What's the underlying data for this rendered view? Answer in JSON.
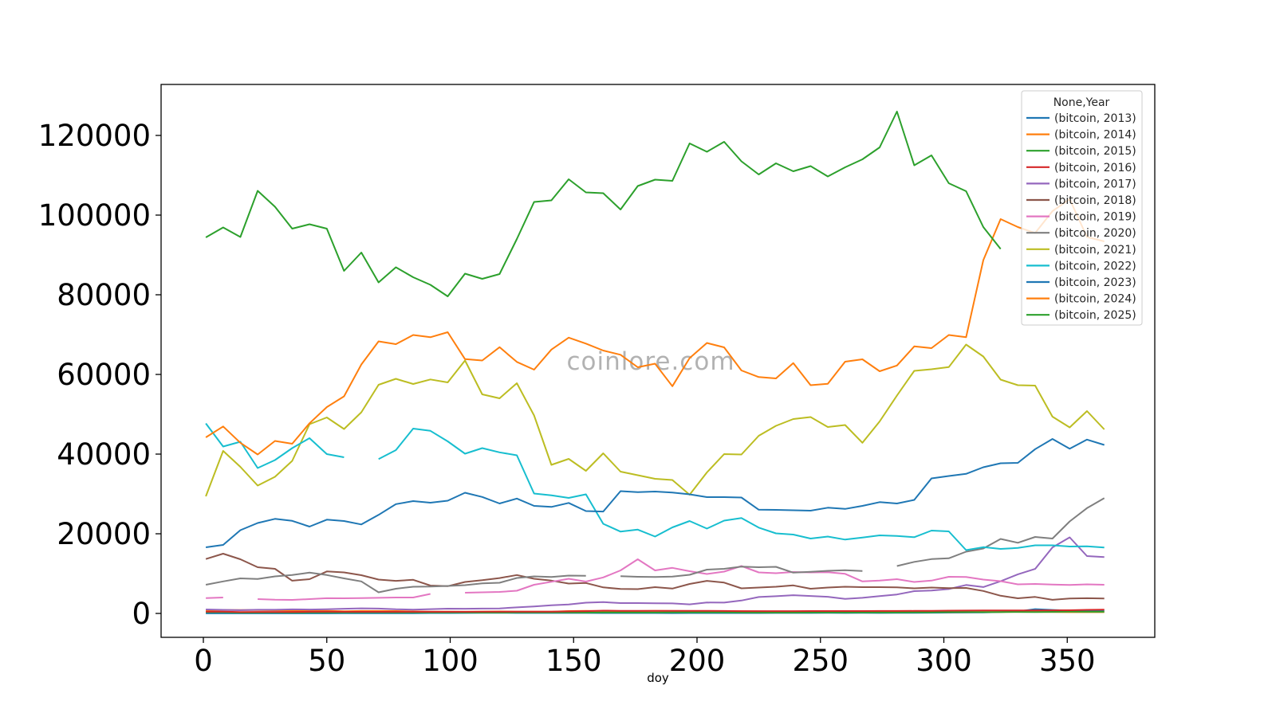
{
  "watermark": {
    "text": "coinlore.com",
    "color": "#b2b2b2"
  },
  "chart_data": {
    "type": "line",
    "title": "",
    "xlabel": "doy",
    "ylabel": "",
    "grid": false,
    "xlim": [
      -16.5,
      385.5
    ],
    "ylim": [
      -6000,
      132600
    ],
    "xticks": [
      0,
      50,
      100,
      150,
      200,
      250,
      300,
      350
    ],
    "yticks": [
      0,
      20000,
      40000,
      60000,
      80000,
      100000,
      120000
    ],
    "legend": {
      "title": "None,Year",
      "position": "upper right"
    },
    "x": [
      1,
      8,
      15,
      22,
      29,
      36,
      43,
      50,
      57,
      64,
      71,
      78,
      85,
      92,
      99,
      106,
      113,
      120,
      127,
      134,
      141,
      148,
      155,
      162,
      169,
      176,
      183,
      190,
      197,
      204,
      211,
      218,
      225,
      232,
      239,
      246,
      253,
      260,
      267,
      274,
      281,
      288,
      295,
      302,
      309,
      316,
      323,
      330,
      337,
      344,
      351,
      358,
      365
    ],
    "series": [
      {
        "name": "(bitcoin, 2013)",
        "color": "#1f77b4",
        "values": [
          13,
          14,
          14,
          15,
          17,
          19,
          21,
          25,
          31,
          34,
          35,
          47,
          65,
          93,
          104,
          118,
          142,
          166,
          117,
          115,
          122,
          128,
          122,
          108,
          100,
          97,
          95,
          76,
          90,
          94,
          97,
          103,
          109,
          113,
          123,
          127,
          135,
          123,
          133,
          127,
          140,
          156,
          183,
          196,
          213,
          267,
          354,
          506,
          1075,
          870,
          703,
          682,
          746
        ]
      },
      {
        "name": "(bitcoin, 2014)",
        "color": "#ff7f0e",
        "values": [
          771,
          832,
          838,
          831,
          795,
          703,
          662,
          632,
          547,
          628,
          630,
          593,
          511,
          457,
          447,
          411,
          458,
          495,
          443,
          440,
          452,
          590,
          650,
          600,
          591,
          597,
          641,
          620,
          609,
          601,
          585,
          589,
          514,
          477,
          505,
          479,
          461,
          410,
          390,
          377,
          330,
          352,
          340,
          325,
          341,
          376,
          366,
          377,
          375,
          347,
          327,
          317,
          320
        ]
      },
      {
        "name": "(bitcoin, 2015)",
        "color": "#2ca02c",
        "values": [
          314,
          290,
          209,
          228,
          232,
          227,
          235,
          239,
          254,
          275,
          286,
          261,
          247,
          254,
          244,
          236,
          224,
          226,
          235,
          237,
          237,
          238,
          229,
          233,
          244,
          241,
          257,
          270,
          277,
          281,
          288,
          263,
          228,
          230,
          229,
          231,
          236,
          238,
          238,
          242,
          266,
          275,
          287,
          331,
          386,
          327,
          358,
          378,
          356,
          396,
          444,
          419,
          430
        ]
      },
      {
        "name": "(bitcoin, 2016)",
        "color": "#d62728",
        "values": [
          434,
          453,
          359,
          388,
          379,
          373,
          411,
          438,
          420,
          411,
          415,
          417,
          415,
          418,
          421,
          427,
          454,
          449,
          457,
          454,
          443,
          526,
          575,
          690,
          665,
          640,
          669,
          650,
          663,
          655,
          624,
          585,
          582,
          579,
          575,
          610,
          609,
          606,
          603,
          611,
          615,
          636,
          653,
          703,
          711,
          742,
          739,
          735,
          754,
          771,
          790,
          896,
          963
        ]
      },
      {
        "name": "(bitcoin, 2017)",
        "color": "#9467bd",
        "values": [
          998,
          902,
          821,
          924,
          920,
          1015,
          988,
          1052,
          1189,
          1274,
          1222,
          1047,
          966,
          1087,
          1190,
          1177,
          1229,
          1266,
          1514,
          1760,
          2056,
          2244,
          2698,
          2840,
          2608,
          2590,
          2542,
          2525,
          2285,
          2749,
          2730,
          3248,
          4122,
          4318,
          4580,
          4374,
          4172,
          3637,
          3924,
          4350,
          4766,
          5605,
          5739,
          6120,
          7143,
          6618,
          8075,
          9818,
          11180,
          16570,
          19100,
          14400,
          14156
        ]
      },
      {
        "name": "(bitcoin, 2018)",
        "color": "#8c564b",
        "values": [
          13657,
          15000,
          13600,
          11600,
          11200,
          8220,
          8600,
          10550,
          10300,
          9600,
          8500,
          8170,
          8450,
          7000,
          6850,
          7900,
          8350,
          8870,
          9650,
          8700,
          8250,
          7500,
          7650,
          6550,
          6150,
          6100,
          6600,
          6250,
          7400,
          8180,
          7750,
          6300,
          6500,
          6700,
          7050,
          6200,
          6500,
          6700,
          6600,
          6600,
          6550,
          6300,
          6500,
          6350,
          6400,
          5640,
          4450,
          3800,
          4150,
          3430,
          3750,
          3830,
          3743
        ]
      },
      {
        "name": "(bitcoin, 2019)",
        "color": "#e377c2",
        "values": [
          3850,
          4000,
          null,
          3590,
          3450,
          3400,
          3610,
          3830,
          3800,
          3860,
          3920,
          4000,
          3990,
          4900,
          null,
          5190,
          5300,
          5400,
          5700,
          7200,
          7950,
          8700,
          8000,
          9050,
          10800,
          13600,
          10800,
          11450,
          10600,
          9900,
          10500,
          11900,
          10300,
          10100,
          10400,
          10300,
          10350,
          9950,
          8050,
          8250,
          8600,
          7900,
          8250,
          9200,
          9150,
          8500,
          8100,
          7300,
          7400,
          7250,
          7150,
          7300,
          7200
        ]
      },
      {
        "name": "(bitcoin, 2020)",
        "color": "#7f7f7f",
        "values": [
          7200,
          8050,
          8800,
          8650,
          9300,
          9650,
          10250,
          9650,
          8800,
          8050,
          5300,
          6200,
          6700,
          6750,
          6900,
          7100,
          7550,
          7700,
          8900,
          9300,
          9150,
          9500,
          9450,
          null,
          9350,
          9200,
          9150,
          9250,
          9700,
          11000,
          11200,
          11750,
          11600,
          11700,
          10250,
          10450,
          10700,
          10850,
          10650,
          null,
          11900,
          12950,
          13650,
          13850,
          15500,
          16300,
          18700,
          17750,
          19200,
          18800,
          23100,
          26450,
          28950
        ]
      },
      {
        "name": "(bitcoin, 2021)",
        "color": "#bcbd22",
        "values": [
          29400,
          40800,
          36800,
          32100,
          34300,
          38300,
          47500,
          49200,
          46300,
          50500,
          57400,
          58900,
          57600,
          58750,
          58000,
          63500,
          55000,
          54000,
          57800,
          49700,
          37300,
          38800,
          35800,
          40200,
          35600,
          34700,
          33800,
          33500,
          29800,
          35400,
          40000,
          39900,
          44600,
          47100,
          48800,
          49300,
          46800,
          47300,
          42850,
          48200,
          54700,
          60900,
          61300,
          61850,
          67500,
          64500,
          58700,
          57300,
          57200,
          49400,
          46700,
          50800,
          46200
        ]
      },
      {
        "name": "(bitcoin, 2022)",
        "color": "#17becf",
        "values": [
          47700,
          41900,
          43100,
          36500,
          38500,
          41500,
          44000,
          40000,
          39200,
          null,
          38750,
          41000,
          46400,
          45850,
          43200,
          40100,
          41500,
          40450,
          39700,
          30100,
          29650,
          29000,
          29900,
          22500,
          20550,
          21050,
          19300,
          21600,
          23200,
          21300,
          23300,
          23950,
          21550,
          20100,
          19800,
          18800,
          19300,
          18550,
          19050,
          19600,
          19450,
          19150,
          20800,
          20600,
          15900,
          16650,
          16200,
          16450,
          17100,
          17100,
          16800,
          16850,
          16550
        ]
      },
      {
        "name": "(bitcoin, 2023)",
        "color": "#1f77b4",
        "values": [
          16600,
          17200,
          20900,
          22700,
          23750,
          23250,
          21800,
          23550,
          23200,
          22350,
          24750,
          27450,
          28200,
          27800,
          28300,
          30300,
          29250,
          27600,
          28850,
          27000,
          26750,
          27750,
          25700,
          25575,
          30700,
          30450,
          30600,
          30350,
          29900,
          29200,
          29200,
          29100,
          26050,
          26000,
          25900,
          25800,
          26550,
          26250,
          27000,
          27950,
          27600,
          28500,
          33900,
          34500,
          35050,
          36700,
          37700,
          37800,
          41250,
          43800,
          41350,
          43650,
          42300
        ]
      },
      {
        "name": "(bitcoin, 2024)",
        "color": "#ff7f0e",
        "values": [
          44200,
          46950,
          42850,
          39900,
          43300,
          42600,
          47750,
          51800,
          54500,
          62500,
          68300,
          67600,
          69900,
          69350,
          70600,
          63850,
          63500,
          66850,
          63150,
          61200,
          66250,
          69250,
          67750,
          66000,
          64950,
          61800,
          62700,
          57050,
          64100,
          67900,
          66800,
          61000,
          59350,
          59000,
          62850,
          57300,
          57650,
          63200,
          63800,
          60800,
          62250,
          67050,
          66600,
          69900,
          69350,
          88700,
          99000,
          97000,
          95500,
          101000,
          104000,
          94500,
          93400
        ]
      },
      {
        "name": "(bitcoin, 2025)",
        "color": "#2ca02c",
        "values": [
          94400,
          96900,
          94500,
          106100,
          102100,
          96600,
          97700,
          96600,
          86000,
          90600,
          83100,
          86900,
          84400,
          82500,
          79600,
          85300,
          84000,
          85200,
          94000,
          103300,
          103700,
          109000,
          105700,
          105500,
          101400,
          107300,
          108900,
          108600,
          118000,
          115900,
          118400,
          113500,
          110200,
          113000,
          111000,
          112300,
          109700,
          112000,
          114000,
          117000,
          126000,
          112500,
          115000,
          108000,
          106000,
          97000,
          91500
        ]
      }
    ]
  }
}
